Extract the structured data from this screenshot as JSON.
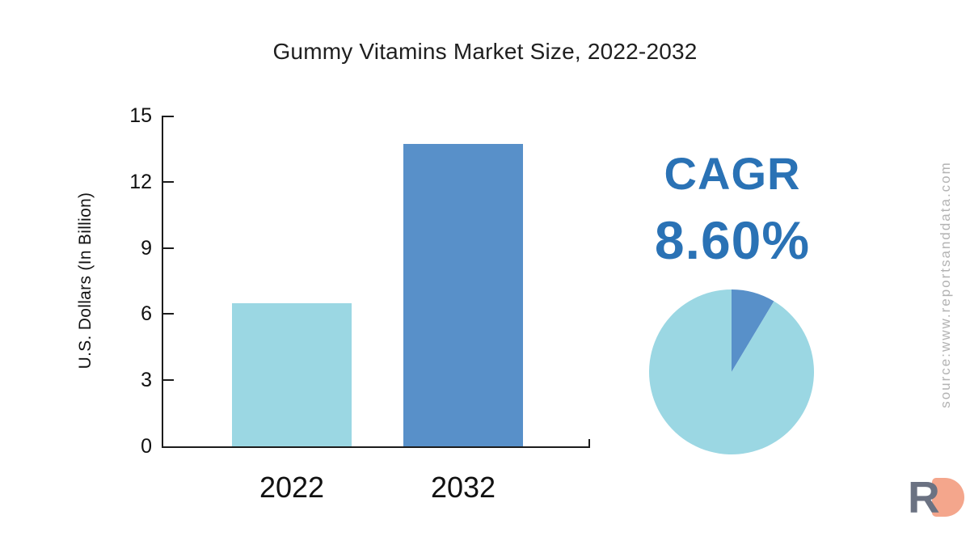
{
  "title": "Gummy Vitamins Market Size, 2022-2032",
  "chart_data": [
    {
      "type": "bar",
      "title": "Gummy Vitamins Market Size, 2022-2032",
      "categories": [
        "2022",
        "2032"
      ],
      "values": [
        6.5,
        13.7
      ],
      "xlabel": "",
      "ylabel": "U.S. Dollars (In Billion)",
      "ylim": [
        0,
        15
      ],
      "yticks": [
        0,
        3,
        6,
        9,
        12,
        15
      ],
      "bar_colors": [
        "#9bd7e3",
        "#5890c9"
      ],
      "grid": false,
      "legend": "none"
    },
    {
      "type": "pie",
      "start_angle": "12 o'clock",
      "direction": "clockwise",
      "slices": [
        {
          "name": "cagr-share",
          "value": 8.6,
          "color": "#5890c9"
        },
        {
          "name": "remainder",
          "value": 91.4,
          "color": "#9bd7e3"
        }
      ]
    }
  ],
  "cagr": {
    "label": "CAGR",
    "value": "8.60%",
    "color": "#2a72b5"
  },
  "source_note": "source:www.reportsanddata.com",
  "logo": {
    "letter_r": "R",
    "letter_d": "D",
    "r_color": "#6b7282",
    "d_color": "#f4a68c"
  },
  "colors": {
    "axis": "#1c1c1c",
    "background": "#ffffff",
    "bar_2022": "#9bd7e3",
    "bar_2032": "#5890c9",
    "accent_blue": "#2a72b5",
    "source_gray": "#b3b3b3"
  }
}
